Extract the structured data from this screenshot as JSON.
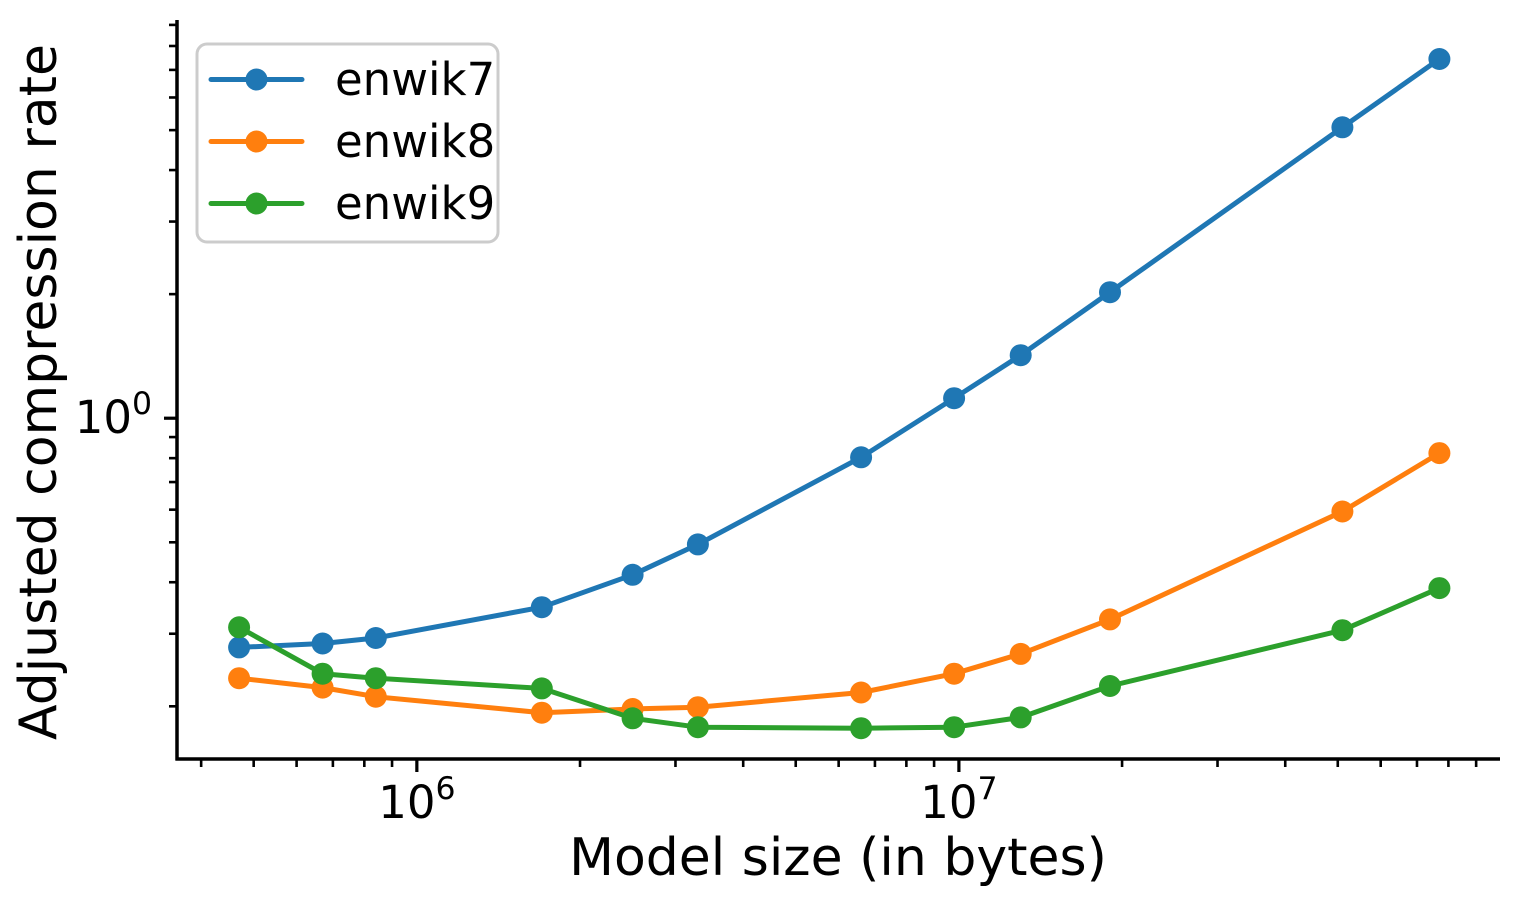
{
  "figure": {
    "background": "#ffffff",
    "text_color": "#000000",
    "spine_color": "#000000",
    "legend_border_color": "#cccccc"
  },
  "chart_data": {
    "type": "line",
    "title": "",
    "xlabel": "Model size (in bytes)",
    "ylabel": "Adjusted compression rate",
    "x_scale": "log",
    "y_scale": "log",
    "grid": false,
    "x": [
      470000,
      670000,
      840000,
      1700000,
      2500000,
      3300000,
      6600000,
      9800000,
      13000000,
      19000000,
      51000000,
      77000000
    ],
    "series": [
      {
        "name": "enwik7",
        "color": "#1f77b4",
        "values": [
          0.278,
          0.284,
          0.293,
          0.348,
          0.417,
          0.494,
          0.804,
          1.118,
          1.422,
          2.022,
          5.08,
          7.44
        ]
      },
      {
        "name": "enwik8",
        "color": "#ff7f0e",
        "values": [
          0.234,
          0.222,
          0.211,
          0.193,
          0.197,
          0.199,
          0.216,
          0.24,
          0.268,
          0.325,
          0.594,
          0.823
        ]
      },
      {
        "name": "enwik9",
        "color": "#2ca02c",
        "values": [
          0.311,
          0.24,
          0.234,
          0.221,
          0.187,
          0.178,
          0.177,
          0.178,
          0.188,
          0.224,
          0.306,
          0.387
        ]
      }
    ],
    "axes": {
      "xlim": [
        361000,
        99600000
      ],
      "ylim": [
        0.149,
        9.25
      ],
      "x_major_ticks": [
        {
          "value": 1000000,
          "base": "10",
          "exponent": "6"
        },
        {
          "value": 10000000,
          "base": "10",
          "exponent": "7"
        }
      ],
      "y_major_ticks": [
        {
          "value": 1,
          "base": "10",
          "exponent": "0"
        }
      ]
    },
    "legend": {
      "position": "upper left",
      "entries": [
        "enwik7",
        "enwik8",
        "enwik9"
      ]
    }
  }
}
